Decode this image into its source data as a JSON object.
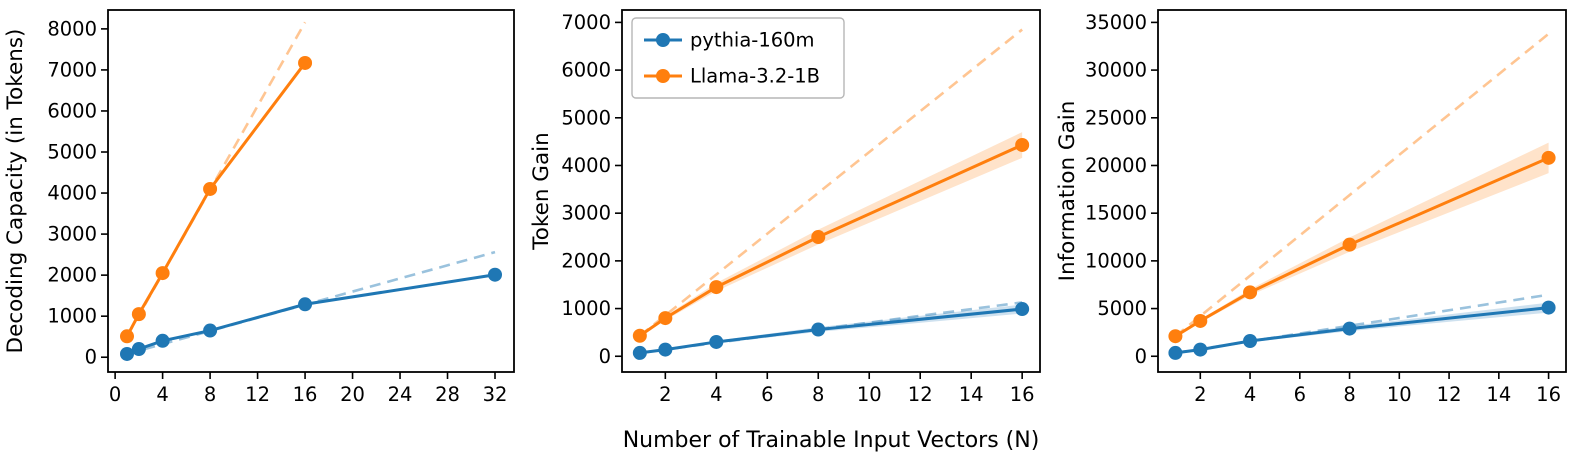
{
  "figure": {
    "xlabel": "Number of Trainable Input Vectors (N)",
    "background": "#ffffff",
    "text_color": "#000000"
  },
  "legend": {
    "position": "upper left",
    "items": [
      {
        "label": "pythia-160m",
        "color": "#1f77b4"
      },
      {
        "label": "Llama-3.2-1B",
        "color": "#ff7f0e"
      }
    ]
  },
  "chart_data": [
    {
      "type": "line",
      "title": "",
      "ylabel": "Decoding Capacity (in Tokens)",
      "xlabel": "",
      "xlim": [
        -0.6,
        33.6
      ],
      "ylim": [
        -360,
        8460
      ],
      "xticks": [
        0,
        4,
        8,
        12,
        16,
        20,
        24,
        28,
        32
      ],
      "yticks": [
        0,
        1000,
        2000,
        3000,
        4000,
        5000,
        6000,
        7000,
        8000
      ],
      "grid": false,
      "legend": false,
      "series": [
        {
          "name": "pythia-160m",
          "color": "#1f77b4",
          "x": [
            1,
            2,
            4,
            8,
            16,
            32
          ],
          "y": [
            80,
            200,
            400,
            650,
            1290,
            2010
          ],
          "err": null,
          "dashed": {
            "x": [
              1,
              32
            ],
            "y": [
              80,
              2560
            ]
          }
        },
        {
          "name": "Llama-3.2-1B",
          "color": "#ff7f0e",
          "x": [
            1,
            2,
            4,
            8,
            16
          ],
          "y": [
            510,
            1050,
            2050,
            4100,
            7170
          ],
          "err": null,
          "dashed": {
            "x": [
              1,
              16
            ],
            "y": [
              510,
              8160
            ]
          }
        }
      ]
    },
    {
      "type": "line",
      "title": "",
      "ylabel": "Token Gain",
      "xlabel": "",
      "xlim": [
        0.3,
        16.7
      ],
      "ylim": [
        -330,
        7260
      ],
      "xticks": [
        2,
        4,
        6,
        8,
        10,
        12,
        14,
        16
      ],
      "yticks": [
        0,
        1000,
        2000,
        3000,
        4000,
        5000,
        6000,
        7000
      ],
      "grid": false,
      "legend": true,
      "series": [
        {
          "name": "pythia-160m",
          "color": "#1f77b4",
          "x": [
            1,
            2,
            4,
            8,
            16
          ],
          "y": [
            70,
            140,
            300,
            560,
            990
          ],
          "err": [
            10,
            15,
            28,
            50,
            95
          ],
          "dashed": {
            "x": [
              1,
              16
            ],
            "y": [
              70,
              1130
            ]
          }
        },
        {
          "name": "Llama-3.2-1B",
          "color": "#ff7f0e",
          "x": [
            1,
            2,
            4,
            8,
            16
          ],
          "y": [
            430,
            800,
            1450,
            2500,
            4430
          ],
          "err": [
            25,
            45,
            85,
            155,
            270
          ],
          "dashed": {
            "x": [
              1,
              16
            ],
            "y": [
              430,
              6850
            ]
          }
        }
      ]
    },
    {
      "type": "line",
      "title": "",
      "ylabel": "Information Gain",
      "xlabel": "",
      "xlim": [
        0.3,
        16.7
      ],
      "ylim": [
        -1650,
        36300
      ],
      "xticks": [
        2,
        4,
        6,
        8,
        10,
        12,
        14,
        16
      ],
      "yticks": [
        0,
        5000,
        10000,
        15000,
        20000,
        25000,
        30000,
        35000
      ],
      "grid": false,
      "legend": false,
      "series": [
        {
          "name": "pythia-160m",
          "color": "#1f77b4",
          "x": [
            1,
            2,
            4,
            8,
            16
          ],
          "y": [
            350,
            700,
            1600,
            2900,
            5100
          ],
          "err": [
            40,
            70,
            130,
            260,
            520
          ],
          "dashed": {
            "x": [
              1,
              16
            ],
            "y": [
              350,
              6450
            ]
          }
        },
        {
          "name": "Llama-3.2-1B",
          "color": "#ff7f0e",
          "x": [
            1,
            2,
            4,
            8,
            16
          ],
          "y": [
            2100,
            3700,
            6700,
            11700,
            20800
          ],
          "err": [
            90,
            160,
            320,
            750,
            1600
          ],
          "dashed": {
            "x": [
              1,
              16
            ],
            "y": [
              2100,
              33800
            ]
          }
        }
      ]
    }
  ]
}
